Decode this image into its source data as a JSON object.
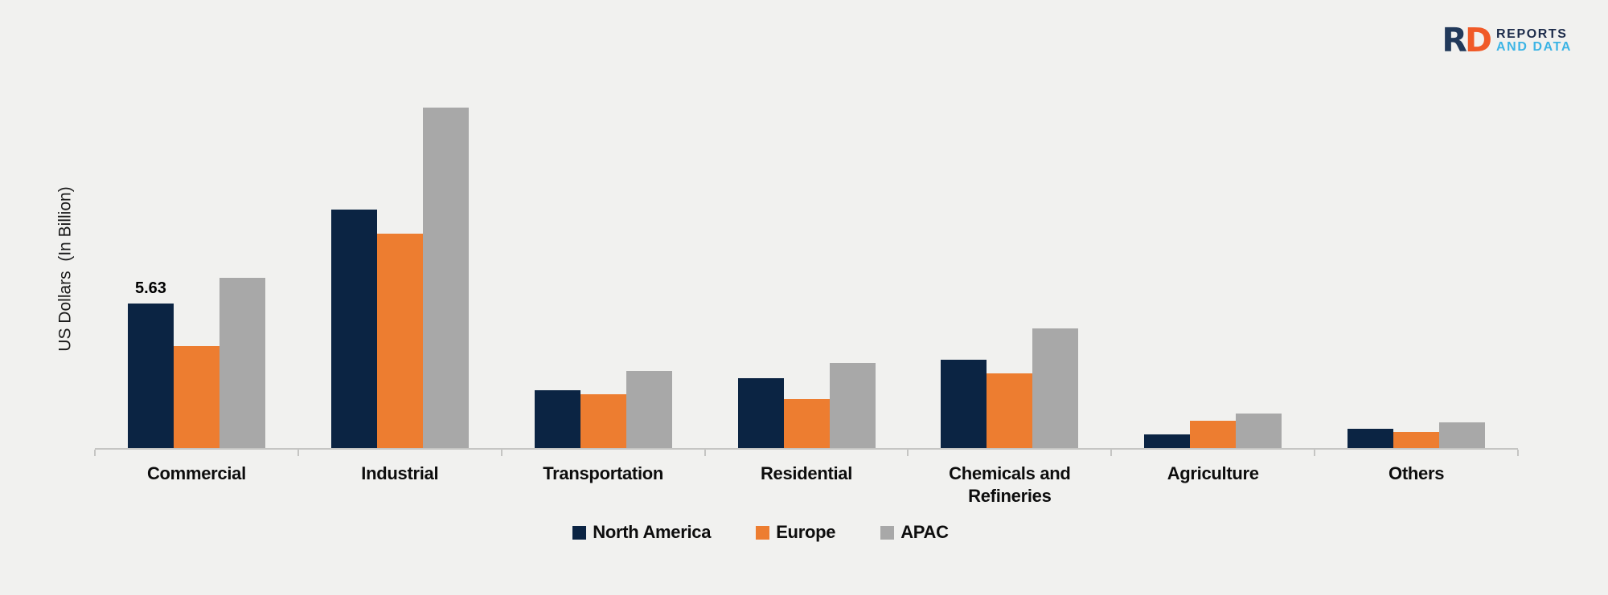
{
  "brand": {
    "mark_r": "R",
    "mark_d": "D",
    "name_line1": "REPORTS",
    "name_line2": "AND DATA",
    "colors": {
      "mark_r": "#21395a",
      "mark_d": "#f05a28",
      "line1": "#1c2b4a",
      "line2": "#3cb4e5"
    }
  },
  "chart_data": {
    "type": "bar",
    "title": "",
    "xlabel": "",
    "ylabel": "US Dollars  (In Billion)",
    "ylim": [
      0,
      14
    ],
    "grid": false,
    "legend_position": "bottom",
    "background_color": "#f1f1ef",
    "axis_color": "#c5c5c3",
    "categories": [
      "Commercial",
      "Industrial",
      "Transportation",
      "Residential",
      "Chemicals and Refineries",
      "Agriculture",
      "Others"
    ],
    "series": [
      {
        "name": "North America",
        "color": "#0b2443",
        "values": [
          5.63,
          9.27,
          2.24,
          2.71,
          3.45,
          0.52,
          0.76
        ]
      },
      {
        "name": "Europe",
        "color": "#ED7D30",
        "values": [
          3.98,
          8.34,
          2.08,
          1.9,
          2.92,
          1.06,
          0.62
        ]
      },
      {
        "name": "APAC",
        "color": "#A8A8A8",
        "values": [
          6.63,
          13.25,
          3.01,
          3.32,
          4.66,
          1.33,
          1.0
        ]
      }
    ],
    "data_labels": [
      {
        "series_index": 0,
        "category_index": 0,
        "text": "5.63"
      }
    ]
  }
}
